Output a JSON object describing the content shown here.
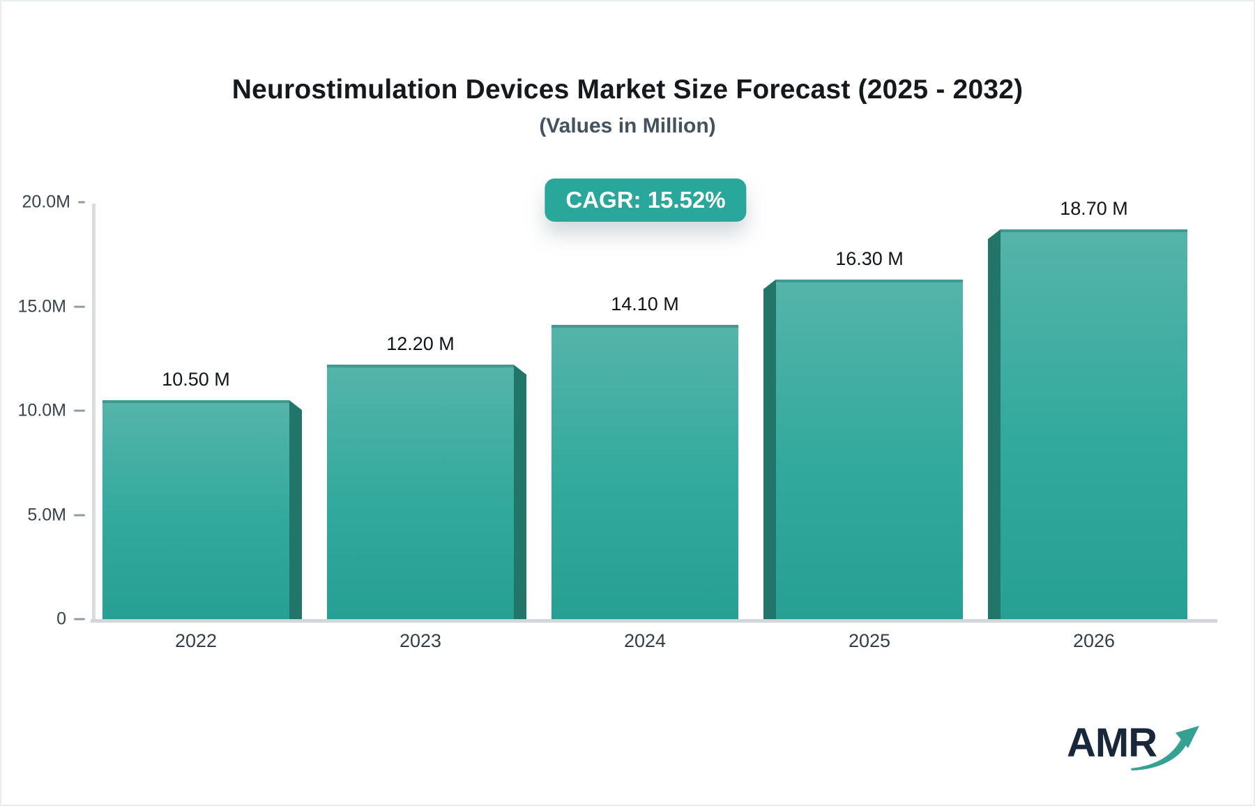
{
  "header": {
    "title": "Neurostimulation Devices Market Size Forecast (2025 - 2032)",
    "subtitle": "(Values in Million)",
    "badge": "CAGR: 15.52%"
  },
  "logo": {
    "text": "AMR"
  },
  "colors": {
    "bar_gradient_top": "#55b4aa",
    "bar_gradient_bottom": "#27a094",
    "bar_side": "#217669",
    "bar_top_edge": "#3c9a90",
    "badge_bg": "#2aa79b",
    "badge_text": "#ffffff",
    "axis_line": "#d6d9db",
    "tick_mark": "#949ba1",
    "axis_label": "#39434e",
    "value_label": "#10151a",
    "title_text": "#15191e",
    "subtitle_text": "#43525f",
    "logo_navy": "#18273a",
    "logo_teal": "#35a094"
  },
  "chart_data": {
    "type": "bar",
    "title": "Neurostimulation Devices Market Size Forecast (2025 - 2032)",
    "subtitle": "(Values in Million)",
    "annotation": "CAGR: 15.52%",
    "unit": "Million",
    "categories": [
      "2022",
      "2023",
      "2024",
      "2025",
      "2026"
    ],
    "values": [
      10.5,
      12.2,
      14.1,
      16.3,
      18.7
    ],
    "value_labels": [
      "10.50 M",
      "12.20 M",
      "14.10 M",
      "16.30 M",
      "18.70 M"
    ],
    "ylim": [
      0,
      20
    ],
    "yticks": [
      {
        "label": "20.0M",
        "value": 20
      },
      {
        "label": "15.0M",
        "value": 15
      },
      {
        "label": "10.0M",
        "value": 10
      },
      {
        "label": "5.0M",
        "value": 5
      },
      {
        "label": "0",
        "value": 0
      }
    ],
    "bar_side_direction": [
      "right",
      "right",
      "none",
      "left",
      "left"
    ],
    "grid": false,
    "legend": false,
    "xlabel": "",
    "ylabel": ""
  }
}
